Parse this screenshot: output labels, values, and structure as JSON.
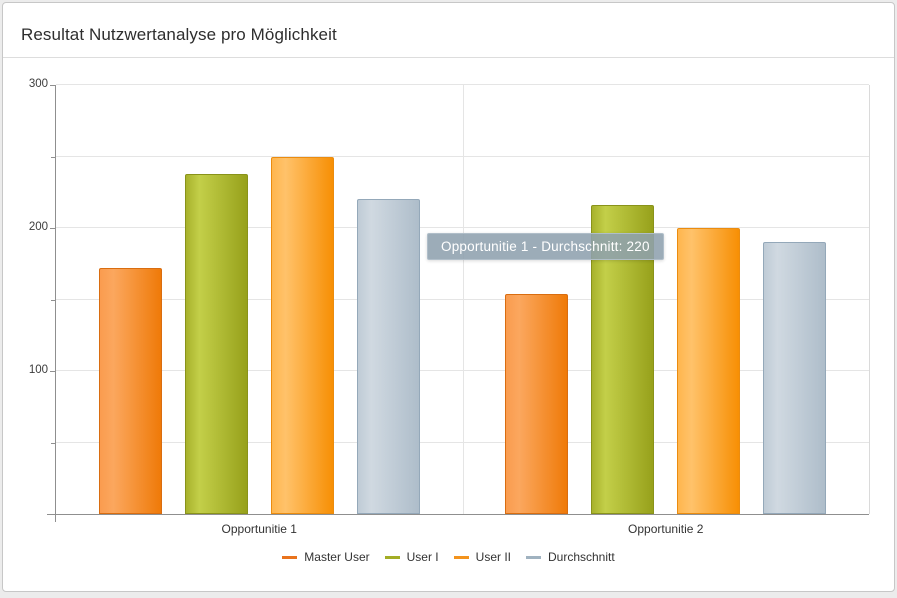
{
  "window": {
    "title": "Resultat Nutzwertanalyse pro Möglichkeit"
  },
  "chart_data": {
    "type": "bar",
    "title": "Resultat Nutzwertanalyse pro Möglichkeit",
    "categories": [
      "Opportunitie 1",
      "Opportunitie 2"
    ],
    "series": [
      {
        "name": "Master User",
        "values": [
          172,
          154
        ],
        "gradient": [
          "#FA9C4F",
          "#FBA75E",
          "#EF7A08"
        ],
        "border_color": "#D96D10",
        "legend_color": "#E9731D"
      },
      {
        "name": "User I",
        "values": [
          238,
          216
        ],
        "gradient": [
          "#A8B22C",
          "#C3CF49",
          "#97A11B"
        ],
        "border_color": "#89931A",
        "legend_color": "#A3AD25"
      },
      {
        "name": "User II",
        "values": [
          250,
          200
        ],
        "gradient": [
          "#FFB64E",
          "#FFC26A",
          "#F78F04"
        ],
        "border_color": "#EB8C0F",
        "legend_color": "#F3931D"
      },
      {
        "name": "Durchschnitt",
        "values": [
          220,
          190
        ],
        "gradient": [
          "#BFCBD6",
          "#D0D9E1",
          "#AEBDCA"
        ],
        "border_color": "#94A8B9",
        "legend_color": "#A0B2C0"
      }
    ],
    "xlabel": "",
    "ylabel": "",
    "ylim": [
      0,
      300
    ],
    "yticks_major": [
      100,
      200,
      300
    ],
    "yticks_minor": [
      50,
      150,
      250
    ],
    "grid": true,
    "legend_position": "bottom"
  },
  "tooltip": {
    "text": "Opportunitie 1 - Durchschnitt: 220"
  }
}
